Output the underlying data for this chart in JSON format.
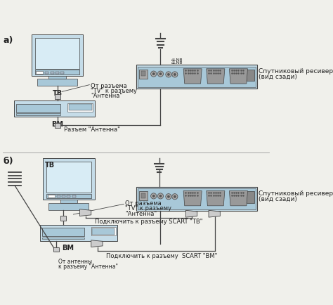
{
  "bg_color": "#f0f0eb",
  "outline_color": "#444444",
  "device_fill": "#c5dce8",
  "device_fill_dark": "#a8c8d8",
  "screen_fill": "#d8ecf5",
  "connector_fill": "#888888",
  "text_color": "#222222",
  "label_a": "а)",
  "label_b": "б)",
  "tv_label": "ТВ",
  "vcr_label": "ВМ",
  "receiver_label_line1": "Спутниковый ресивер",
  "receiver_label_line2": "(вид сзади)",
  "ann_a1_l1": "От разъема",
  "ann_a1_l2": "\"TV\" к разъему",
  "ann_a1_l3": "\"Антенна\"",
  "ann_a2": "Разъем \"Антенна\"",
  "ann_b1_l1": "От разъема",
  "ann_b1_l2": "\"TV\" к разъему",
  "ann_b1_l3": "\"Антенна\"",
  "ann_b2": "Подключить к разъему SCART \"ТВ\"",
  "ann_b3": "Подключить к разъему  SCART \"ВМ\"",
  "ann_b4_l1": "От антенны",
  "ann_b4_l2": "к разъему \"Антенна\""
}
